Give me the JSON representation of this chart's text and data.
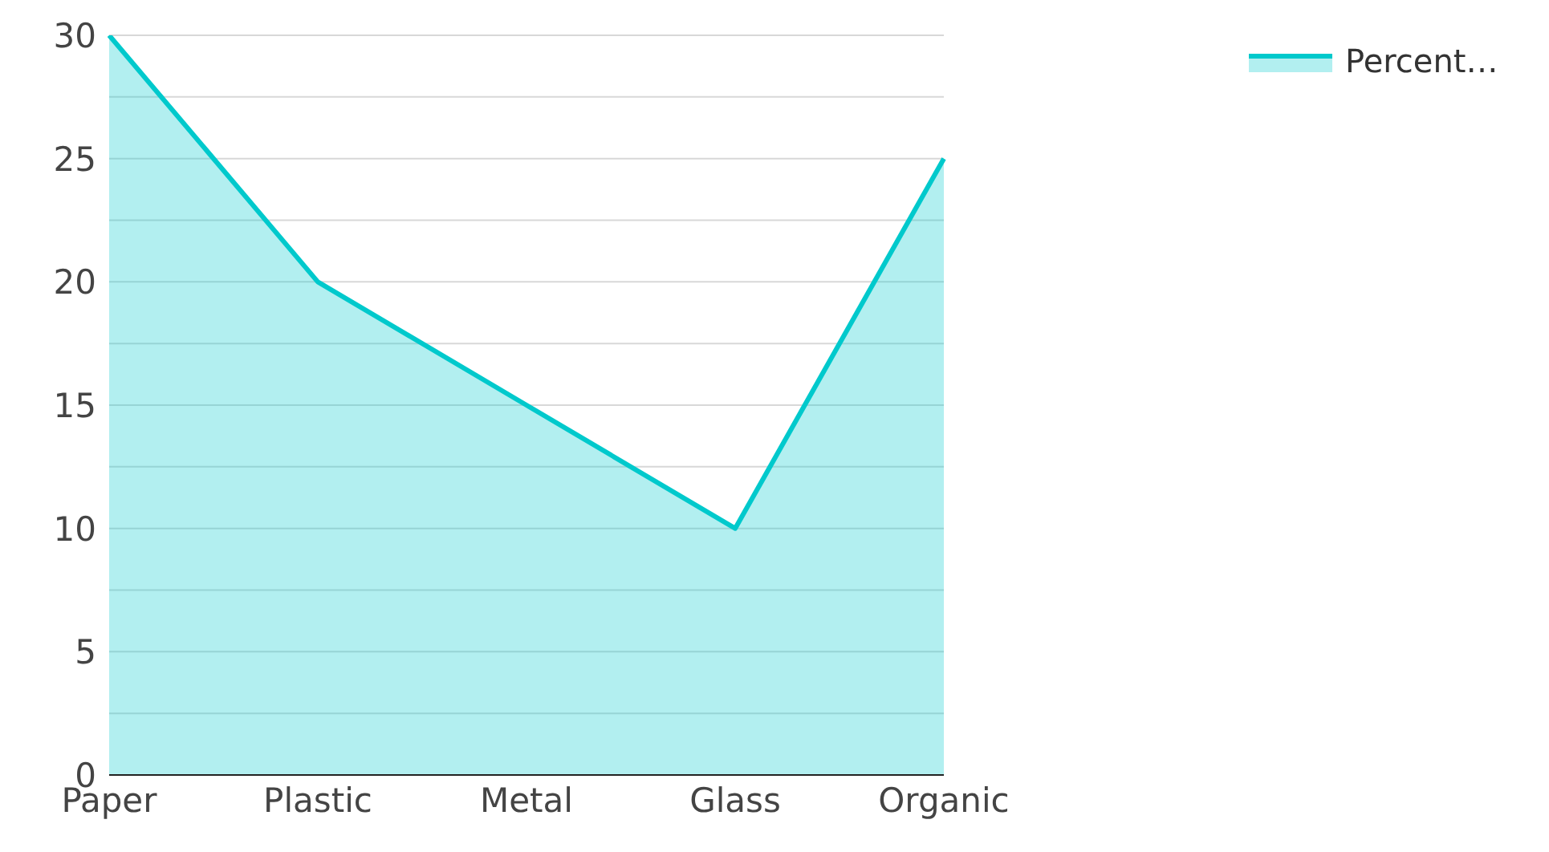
{
  "chart_data": {
    "type": "area",
    "categories": [
      "Paper",
      "Plastic",
      "Metal",
      "Glass",
      "Organic"
    ],
    "series": [
      {
        "name": "Percent…",
        "color": "#00c9cc",
        "values": [
          30,
          20,
          15,
          10,
          25
        ]
      }
    ],
    "ylim": [
      0,
      30
    ],
    "yticks": [
      0,
      {
        "value": 2.5,
        "label": null
      },
      5,
      {
        "value": 7.5,
        "label": null
      },
      10,
      {
        "value": 12.5,
        "label": null
      },
      15,
      {
        "value": 17.5,
        "label": null
      },
      20,
      {
        "value": 22.5,
        "label": null
      },
      25,
      {
        "value": 27.5,
        "label": null
      },
      30
    ],
    "grid": "y",
    "legend": "top right"
  }
}
